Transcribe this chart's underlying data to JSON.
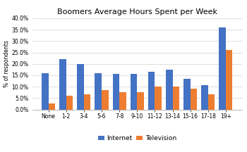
{
  "title": "Boomers Average Hours Spent per Week",
  "categories": [
    "None",
    "1-2",
    "3-4",
    "5-6",
    "7-8",
    "9-10",
    "11-12",
    "13-14",
    "15-16",
    "17-18",
    "19+"
  ],
  "internet": [
    16.0,
    22.0,
    20.0,
    16.0,
    15.5,
    15.5,
    16.5,
    17.5,
    13.5,
    10.5,
    36.0
  ],
  "television": [
    2.5,
    6.0,
    6.5,
    8.5,
    7.5,
    7.5,
    10.0,
    10.0,
    9.0,
    6.5,
    26.0
  ],
  "internet_color": "#4472C4",
  "television_color": "#ED7D31",
  "ylabel": "% of respondents",
  "ylim": [
    0,
    40
  ],
  "yticks": [
    0,
    5,
    10,
    15,
    20,
    25,
    30,
    35,
    40
  ],
  "ytick_labels": [
    "0.0%",
    "5.0%",
    "10.0%",
    "15.0%",
    "20.0%",
    "25.0%",
    "30.0%",
    "35.0%",
    "40.0%"
  ],
  "legend_labels": [
    "Internet",
    "Television"
  ],
  "background_color": "#ffffff",
  "grid_color": "#d9d9d9"
}
